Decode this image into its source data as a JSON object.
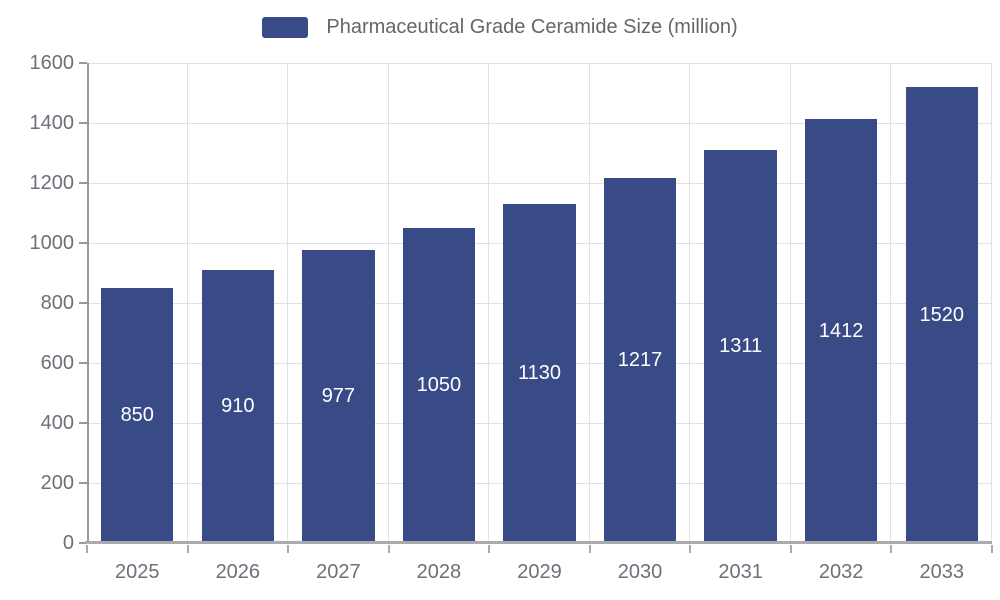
{
  "legend": {
    "swatch_color": "#384b87"
  },
  "chart_data": {
    "type": "bar",
    "title": "Pharmaceutical Grade Ceramide Size (million)",
    "categories": [
      "2025",
      "2026",
      "2027",
      "2028",
      "2029",
      "2030",
      "2031",
      "2032",
      "2033"
    ],
    "values": [
      850,
      910,
      977,
      1050,
      1130,
      1217,
      1311,
      1412,
      1520
    ],
    "xlabel": "",
    "ylabel": "",
    "ylim": [
      0,
      1600
    ],
    "yticks": [
      0,
      200,
      400,
      600,
      800,
      1000,
      1200,
      1400,
      1600
    ],
    "bar_color": "#384b87",
    "value_label_color": "#ffffff",
    "grid": true,
    "legend_position": "top"
  }
}
